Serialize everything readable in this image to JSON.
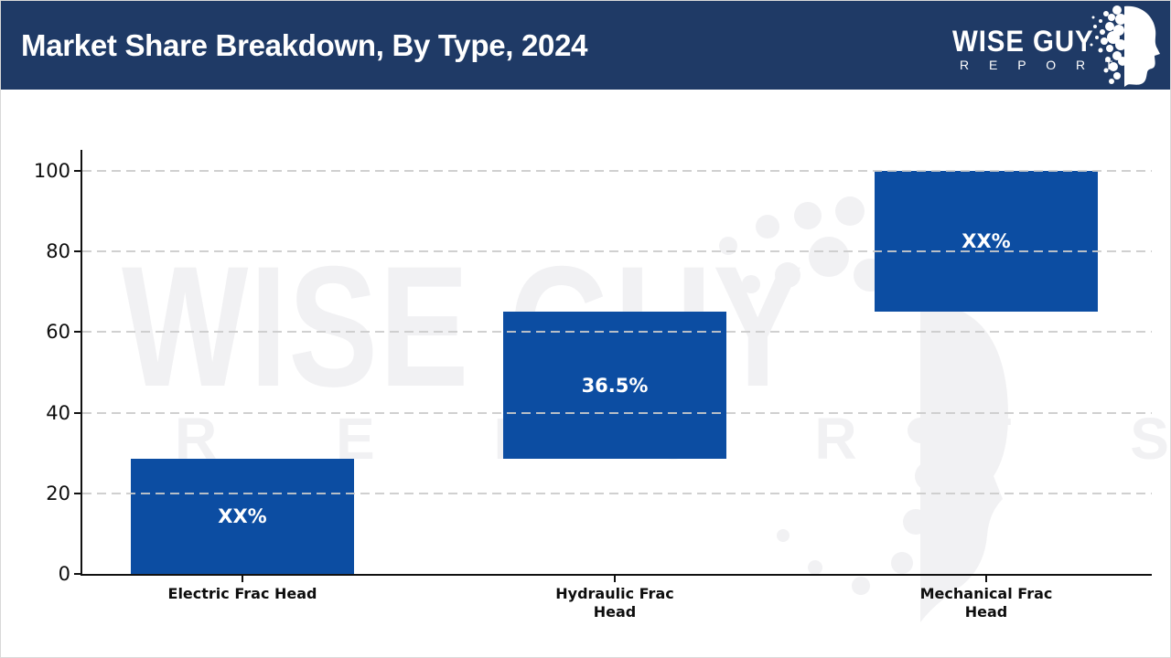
{
  "header": {
    "title": "Market Share Breakdown, By Type, 2024",
    "logo": {
      "line1": "WISE GUY",
      "line2": "R E P O R T S"
    },
    "bg_color": "#1F3A66"
  },
  "watermark": {
    "line1": "WISE GUY",
    "line2": "R E P O R T S"
  },
  "chart_data": {
    "type": "bar",
    "subtype": "floating-segment-bars",
    "title": "Market Share Breakdown, By Type, 2024",
    "categories": [
      "Electric Frac Head",
      "Hydraulic Frac Head",
      "Mechanical Frac Head"
    ],
    "category_label_lines": [
      [
        "Electric Frac Head"
      ],
      [
        "Hydraulic Frac",
        "Head"
      ],
      [
        "Mechanical Frac",
        "Head"
      ]
    ],
    "series": [
      {
        "name": "Electric Frac Head",
        "start": 0,
        "end": 28.5,
        "label": "XX%"
      },
      {
        "name": "Hydraulic Frac Head",
        "start": 28.5,
        "end": 65,
        "label": "36.5%"
      },
      {
        "name": "Mechanical Frac Head",
        "start": 65,
        "end": 100,
        "label": "XX%"
      }
    ],
    "bar_labels": [
      "XX%",
      "36.5%",
      "XX%"
    ],
    "xlabel": "",
    "ylabel": "",
    "ylim": [
      0,
      100
    ],
    "yticks": [
      0,
      20,
      40,
      60,
      80,
      100
    ],
    "grid": "horizontal dashed, drawn over bars",
    "legend": "none",
    "bar_color": "#0C4DA2"
  }
}
